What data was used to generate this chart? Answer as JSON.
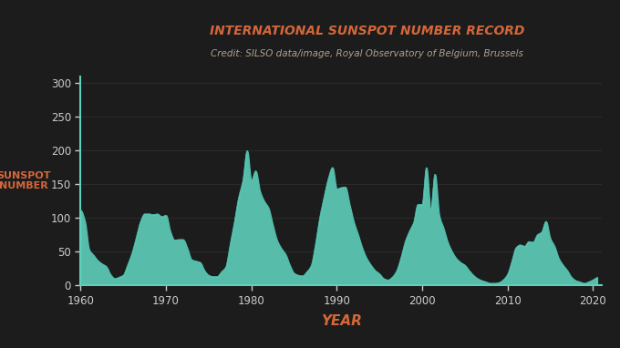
{
  "title": "INTERNATIONAL SUNSPOT NUMBER RECORD",
  "subtitle": "Credit: SILSO data/image, Royal Observatory of Belgium, Brussels",
  "xlabel": "YEAR",
  "ylabel": "SUNSPOT\nNUMBER",
  "background_color": "#1c1c1c",
  "fill_color": "#5ecfba",
  "line_color": "#4ab8a5",
  "axis_color": "#5ecfba",
  "title_color": "#d4673a",
  "subtitle_color": "#b0a090",
  "xlabel_color": "#d4673a",
  "ylabel_color": "#d4673a",
  "tick_color": "#cccccc",
  "xlim": [
    1960,
    2021
  ],
  "ylim": [
    0,
    310
  ],
  "yticks": [
    0,
    50,
    100,
    150,
    200,
    250,
    300
  ],
  "xticks": [
    1960,
    1970,
    1980,
    1990,
    2000,
    2010,
    2020
  ],
  "keypoints": [
    [
      1960.0,
      112
    ],
    [
      1960.5,
      95
    ],
    [
      1961.0,
      53
    ],
    [
      1961.5,
      45
    ],
    [
      1962.0,
      37
    ],
    [
      1962.5,
      32
    ],
    [
      1963.0,
      28
    ],
    [
      1963.5,
      16
    ],
    [
      1964.0,
      10
    ],
    [
      1964.5,
      12
    ],
    [
      1965.0,
      15
    ],
    [
      1965.5,
      30
    ],
    [
      1966.0,
      47
    ],
    [
      1966.5,
      70
    ],
    [
      1967.0,
      94
    ],
    [
      1967.5,
      106
    ],
    [
      1968.0,
      106
    ],
    [
      1968.5,
      105
    ],
    [
      1969.0,
      106
    ],
    [
      1969.5,
      102
    ],
    [
      1970.0,
      104
    ],
    [
      1970.5,
      80
    ],
    [
      1971.0,
      67
    ],
    [
      1971.5,
      68
    ],
    [
      1972.0,
      68
    ],
    [
      1972.5,
      55
    ],
    [
      1973.0,
      38
    ],
    [
      1973.5,
      36
    ],
    [
      1974.0,
      34
    ],
    [
      1974.5,
      22
    ],
    [
      1975.0,
      15
    ],
    [
      1975.5,
      13
    ],
    [
      1976.0,
      13
    ],
    [
      1976.5,
      20
    ],
    [
      1977.0,
      27
    ],
    [
      1977.5,
      60
    ],
    [
      1978.0,
      93
    ],
    [
      1978.5,
      130
    ],
    [
      1979.0,
      155
    ],
    [
      1979.5,
      200
    ],
    [
      1980.0,
      155
    ],
    [
      1980.5,
      170
    ],
    [
      1981.0,
      140
    ],
    [
      1981.5,
      125
    ],
    [
      1982.0,
      115
    ],
    [
      1982.5,
      90
    ],
    [
      1983.0,
      67
    ],
    [
      1983.5,
      55
    ],
    [
      1984.0,
      46
    ],
    [
      1984.5,
      30
    ],
    [
      1985.0,
      18
    ],
    [
      1985.5,
      15
    ],
    [
      1986.0,
      14
    ],
    [
      1986.5,
      20
    ],
    [
      1987.0,
      29
    ],
    [
      1987.5,
      60
    ],
    [
      1988.0,
      100
    ],
    [
      1988.5,
      130
    ],
    [
      1989.0,
      158
    ],
    [
      1989.5,
      175
    ],
    [
      1990.0,
      143
    ],
    [
      1990.5,
      145
    ],
    [
      1991.0,
      146
    ],
    [
      1991.5,
      120
    ],
    [
      1992.0,
      94
    ],
    [
      1992.5,
      75
    ],
    [
      1993.0,
      55
    ],
    [
      1993.5,
      40
    ],
    [
      1994.0,
      30
    ],
    [
      1994.5,
      22
    ],
    [
      1995.0,
      17
    ],
    [
      1995.5,
      10
    ],
    [
      1996.0,
      8
    ],
    [
      1996.5,
      12
    ],
    [
      1997.0,
      21
    ],
    [
      1997.5,
      40
    ],
    [
      1998.0,
      64
    ],
    [
      1998.5,
      80
    ],
    [
      1999.0,
      93
    ],
    [
      1999.5,
      120
    ],
    [
      2000.0,
      120
    ],
    [
      2000.5,
      175
    ],
    [
      2001.0,
      111
    ],
    [
      2001.5,
      165
    ],
    [
      2002.0,
      104
    ],
    [
      2002.5,
      85
    ],
    [
      2003.0,
      64
    ],
    [
      2003.5,
      50
    ],
    [
      2004.0,
      40
    ],
    [
      2004.5,
      34
    ],
    [
      2005.0,
      30
    ],
    [
      2005.5,
      22
    ],
    [
      2006.0,
      15
    ],
    [
      2006.5,
      10
    ],
    [
      2007.0,
      7
    ],
    [
      2007.5,
      5
    ],
    [
      2008.0,
      3
    ],
    [
      2008.5,
      3
    ],
    [
      2009.0,
      4
    ],
    [
      2009.5,
      8
    ],
    [
      2010.0,
      16
    ],
    [
      2010.5,
      35
    ],
    [
      2011.0,
      56
    ],
    [
      2011.5,
      60
    ],
    [
      2012.0,
      58
    ],
    [
      2012.5,
      65
    ],
    [
      2013.0,
      64
    ],
    [
      2013.5,
      75
    ],
    [
      2014.0,
      79
    ],
    [
      2014.5,
      95
    ],
    [
      2015.0,
      70
    ],
    [
      2015.5,
      58
    ],
    [
      2016.0,
      40
    ],
    [
      2016.5,
      30
    ],
    [
      2017.0,
      22
    ],
    [
      2017.5,
      12
    ],
    [
      2018.0,
      7
    ],
    [
      2018.5,
      5
    ],
    [
      2019.0,
      3
    ],
    [
      2019.5,
      5
    ],
    [
      2020.0,
      8
    ],
    [
      2020.5,
      12
    ]
  ]
}
